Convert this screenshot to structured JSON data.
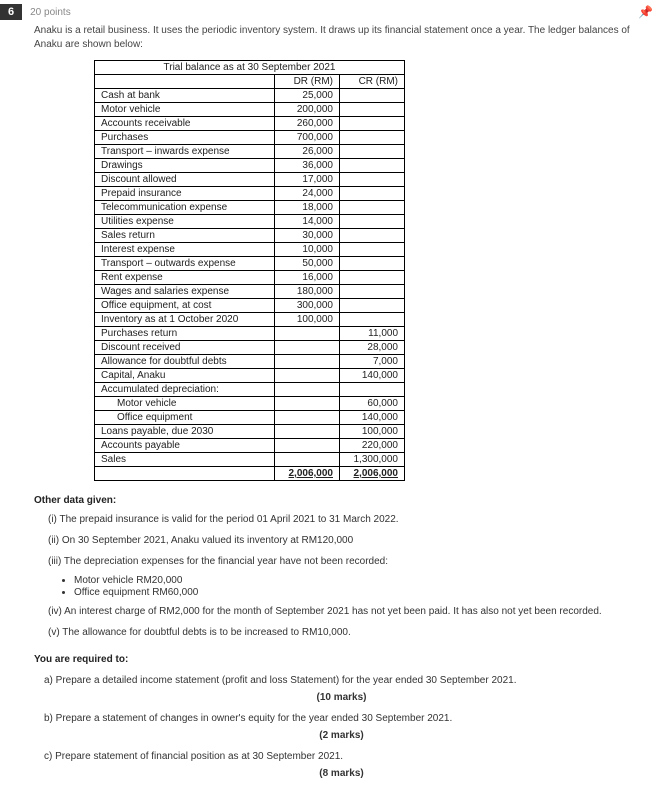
{
  "header": {
    "question_number": "6",
    "points": "20 points",
    "pin_icon": "📌"
  },
  "intro": "Anaku is a retail business. It uses the periodic inventory system. It draws up its financial statement once a year. The ledger balances of Anaku are shown below:",
  "trial_balance": {
    "title": "Trial balance as at 30 September 2021",
    "col_dr": "DR (RM)",
    "col_cr": "CR (RM)",
    "rows": [
      {
        "acct": "Cash at bank",
        "dr": "25,000",
        "cr": ""
      },
      {
        "acct": "Motor vehicle",
        "dr": "200,000",
        "cr": ""
      },
      {
        "acct": "Accounts receivable",
        "dr": "260,000",
        "cr": ""
      },
      {
        "acct": "Purchases",
        "dr": "700,000",
        "cr": ""
      },
      {
        "acct": "Transport – inwards expense",
        "dr": "26,000",
        "cr": ""
      },
      {
        "acct": "Drawings",
        "dr": "36,000",
        "cr": ""
      },
      {
        "acct": "Discount allowed",
        "dr": "17,000",
        "cr": ""
      },
      {
        "acct": "Prepaid insurance",
        "dr": "24,000",
        "cr": ""
      },
      {
        "acct": "Telecommunication expense",
        "dr": "18,000",
        "cr": ""
      },
      {
        "acct": "Utilities expense",
        "dr": "14,000",
        "cr": ""
      },
      {
        "acct": "Sales return",
        "dr": "30,000",
        "cr": ""
      },
      {
        "acct": "Interest expense",
        "dr": "10,000",
        "cr": ""
      },
      {
        "acct": "Transport – outwards expense",
        "dr": "50,000",
        "cr": ""
      },
      {
        "acct": "Rent expense",
        "dr": "16,000",
        "cr": ""
      },
      {
        "acct": "Wages and salaries expense",
        "dr": "180,000",
        "cr": ""
      },
      {
        "acct": "Office equipment, at cost",
        "dr": "300,000",
        "cr": ""
      },
      {
        "acct": "Inventory as at 1 October 2020",
        "dr": "100,000",
        "cr": ""
      },
      {
        "acct": "Purchases return",
        "dr": "",
        "cr": "11,000"
      },
      {
        "acct": "Discount received",
        "dr": "",
        "cr": "28,000"
      },
      {
        "acct": "Allowance for doubtful debts",
        "dr": "",
        "cr": "7,000"
      },
      {
        "acct": "Capital, Anaku",
        "dr": "",
        "cr": "140,000"
      },
      {
        "acct": "Accumulated depreciation:",
        "dr": "",
        "cr": ""
      },
      {
        "acct": "Motor vehicle",
        "dr": "",
        "cr": "60,000",
        "indent": true
      },
      {
        "acct": "Office equipment",
        "dr": "",
        "cr": "140,000",
        "indent": true
      },
      {
        "acct": "Loans payable, due 2030",
        "dr": "",
        "cr": "100,000"
      },
      {
        "acct": "Accounts payable",
        "dr": "",
        "cr": "220,000"
      },
      {
        "acct": "Sales",
        "dr": "",
        "cr": "1,300,000"
      }
    ],
    "total_dr": "2,006,000",
    "total_cr": "2,006,000"
  },
  "other_data": {
    "title": "Other data given:",
    "items": {
      "i": "(i) The prepaid insurance is valid for the period 01 April 2021 to 31 March 2022.",
      "ii": "(ii) On 30 September 2021, Anaku valued its inventory at RM120,000",
      "iii_lead": "(iii)    The depreciation expenses for the financial year have not been recorded:",
      "iii_a": "Motor vehicle RM20,000",
      "iii_b": "Office equipment RM60,000",
      "iv": "(iv)    An interest charge of RM2,000 for the month of September 2021 has not yet been paid. It has also not yet been recorded.",
      "v": "(v) The allowance for doubtful debts is to be increased to RM10,000."
    }
  },
  "required": {
    "title": "You are required to:",
    "a": "a) Prepare a detailed income statement (profit and loss Statement) for the year ended 30 September 2021.",
    "a_marks": "(10 marks)",
    "b": "b) Prepare a statement of changes in owner's equity for the year ended 30 September 2021.",
    "b_marks": "(2 marks)",
    "c": "c) Prepare statement of financial position as at 30 September 2021.",
    "c_marks": "(8 marks)"
  }
}
